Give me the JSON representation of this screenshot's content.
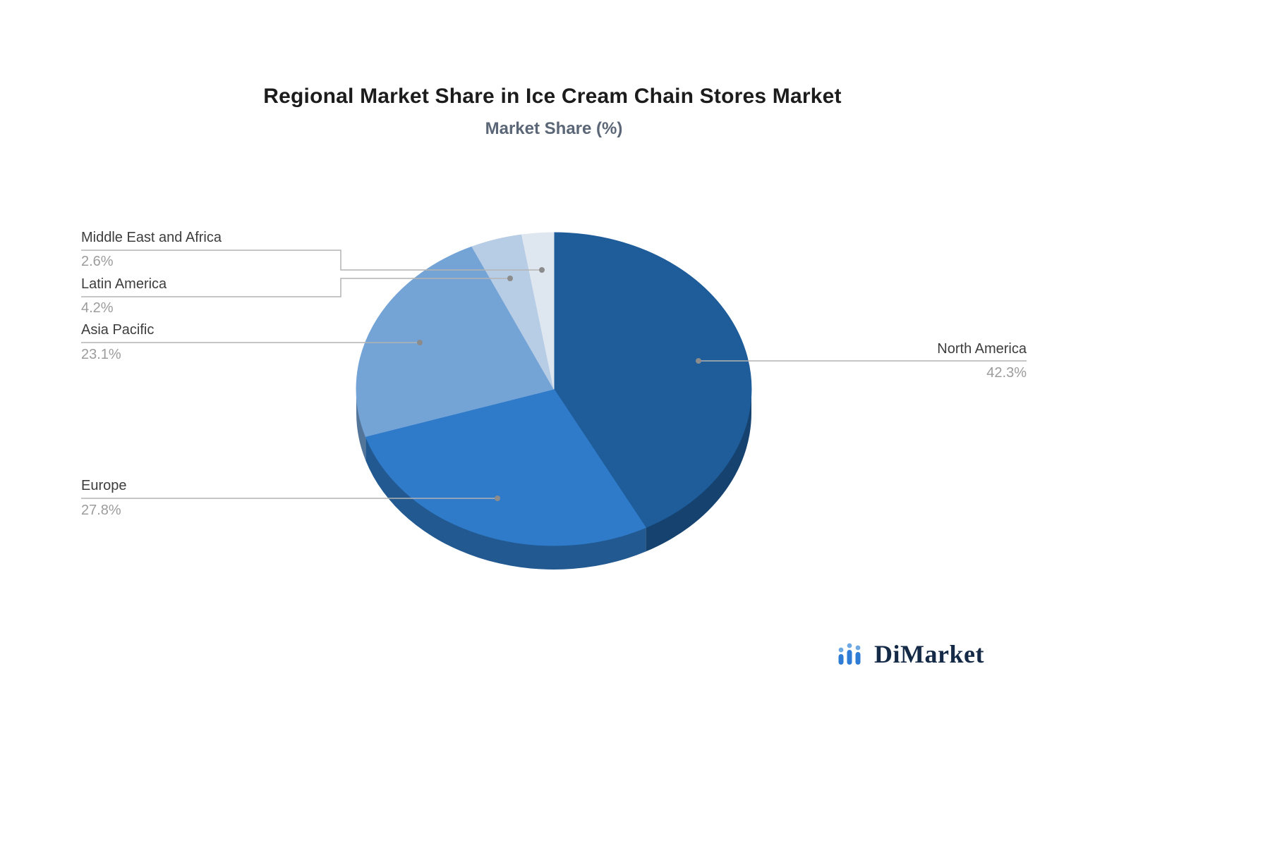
{
  "chart_data": {
    "type": "pie",
    "title": "Regional Market Share in Ice Cream Chain Stores Market",
    "subtitle": "Market Share (%)",
    "unit": "%",
    "style": "3d-ellipse",
    "start_angle": "top",
    "direction": "clockwise",
    "legend_position": "callout-labels",
    "slices": [
      {
        "label": "North America",
        "value": 42.3,
        "display": "42.3%",
        "color": "#1e5c9a"
      },
      {
        "label": "Europe",
        "value": 27.8,
        "display": "27.8%",
        "color": "#2f7bc9"
      },
      {
        "label": "Asia Pacific",
        "value": 23.1,
        "display": "23.1%",
        "color": "#74a3d6"
      },
      {
        "label": "Latin America",
        "value": 4.2,
        "display": "4.2%",
        "color": "#b7cce5"
      },
      {
        "label": "Middle East and Africa",
        "value": 2.6,
        "display": "2.6%",
        "color": "#dee6f0"
      }
    ],
    "line_color": "#b3b3b3",
    "dot_color": "#8c8c8c"
  },
  "brand": {
    "wordmark": "DiMarket",
    "icon": "bar-chart-icon",
    "icon_color": "#2e7cd6",
    "icon_dot_color": "#6ea9e4"
  }
}
